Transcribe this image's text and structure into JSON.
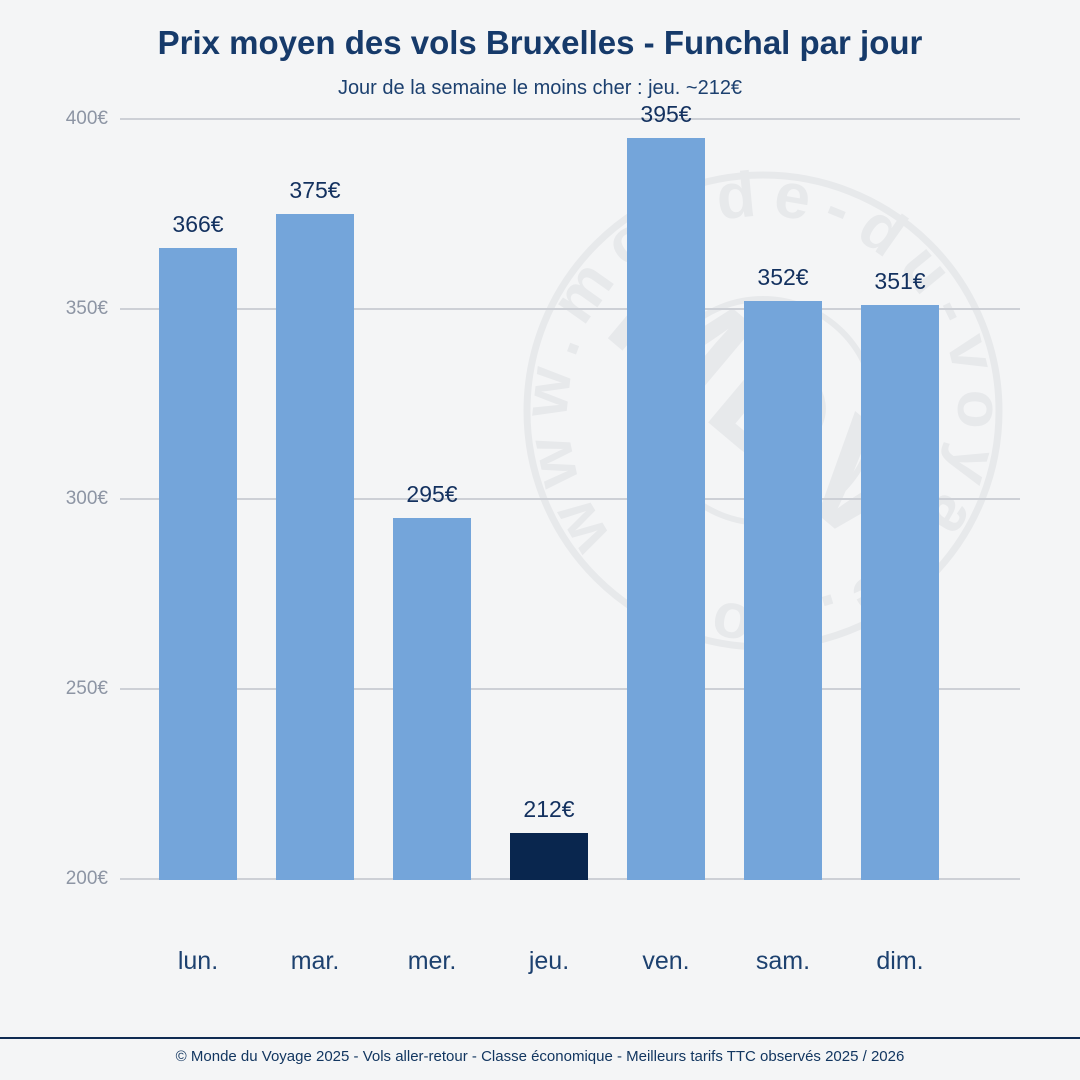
{
  "page": {
    "background": "#f4f5f6"
  },
  "header": {
    "title": "Prix moyen des vols Bruxelles - Funchal par jour",
    "subtitle": "Jour de la semaine le moins cher : jeu. ~212€"
  },
  "chart_data": {
    "type": "bar",
    "title": "Prix moyen des vols Bruxelles - Funchal par jour",
    "subtitle": "Jour de la semaine le moins cher : jeu. ~212€",
    "categories": [
      "lun.",
      "mar.",
      "mer.",
      "jeu.",
      "ven.",
      "sam.",
      "dim."
    ],
    "values": [
      366,
      375,
      295,
      212,
      395,
      352,
      351
    ],
    "value_labels": [
      "366€",
      "375€",
      "295€",
      "212€",
      "395€",
      "352€",
      "351€"
    ],
    "unit": "€",
    "ylim": [
      200,
      400
    ],
    "yticks": [
      400,
      350,
      300,
      250,
      200
    ],
    "ytick_labels": [
      "400€",
      "350€",
      "300€",
      "250€",
      "200€"
    ],
    "grid": "horizontal",
    "legend": "none",
    "cheapest_day_index": 3,
    "colors": {
      "bar": "#74a5da",
      "highlight_bar": "#09264e",
      "gridline": "#cdd0d6",
      "value_label": "#13315f",
      "axis_label": "#1d416f",
      "ytick_label": "#8d95a4"
    }
  },
  "watermark": {
    "ring_text": "www.monde-du-voyage.com",
    "center_text": "MDV"
  },
  "footer": {
    "text": "© Monde du Voyage 2025 - Vols aller-retour - Classe économique - Meilleurs tarifs TTC observés 2025 / 2026"
  }
}
